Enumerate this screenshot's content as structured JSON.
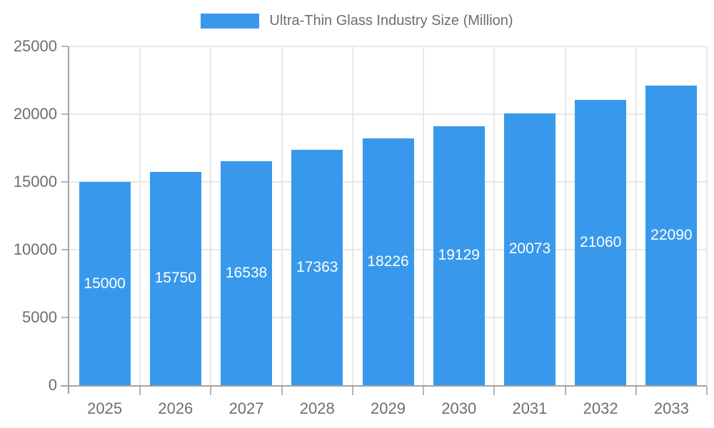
{
  "legend": {
    "label": "Ultra-Thin Glass Industry Size (Million)"
  },
  "colors": {
    "bar": "#3899EC",
    "grid": "#E7E7E7",
    "axis": "#A3A3A3",
    "tick": "#B5B5B5",
    "tick_label": "#6E6E6E",
    "bar_label": "#FFFFFF",
    "background": "#FFFFFF"
  },
  "chart_data": {
    "type": "bar",
    "title": "Ultra-Thin Glass Industry Size (Million)",
    "categories": [
      "2025",
      "2026",
      "2027",
      "2028",
      "2029",
      "2030",
      "2031",
      "2032",
      "2033"
    ],
    "values": [
      15000,
      15750,
      16538,
      17363,
      18226,
      19129,
      20073,
      21060,
      22090
    ],
    "bar_labels": [
      "15000",
      "15750",
      "16538",
      "17363",
      "18226",
      "19129",
      "20073",
      "21060",
      "22090"
    ],
    "xlabel": "",
    "ylabel": "",
    "ylim": [
      0,
      25000
    ],
    "yticks": [
      0,
      5000,
      10000,
      15000,
      20000,
      25000
    ],
    "ytick_labels": [
      "0",
      "5000",
      "10000",
      "15000",
      "20000",
      "25000"
    ],
    "grid": "both",
    "legend_position": "top",
    "value_labels": "inside-center"
  }
}
